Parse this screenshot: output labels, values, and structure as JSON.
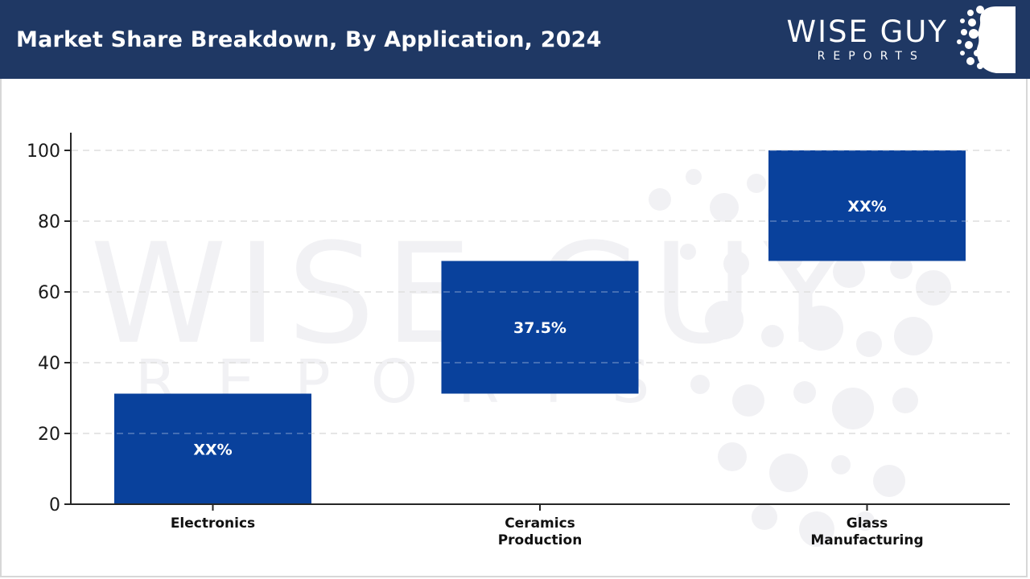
{
  "header": {
    "title": "Market Share Breakdown, By Application, 2024",
    "logo": {
      "line1": "WISE GUY",
      "line2": "REPORTS"
    }
  },
  "watermark": {
    "line1": "WISE GUY",
    "line2": "REPORTS"
  },
  "colors": {
    "header_bg": "#1f3864",
    "bar": "#09419c",
    "grid": "#d9d9d9",
    "grid_over_bar": "rgba(255,255,255,0.28)",
    "axis": "#262626",
    "tick_label": "#1a1a1a",
    "category_label": "#111111",
    "bar_label": "#ffffff",
    "watermark": "#f1f1f4",
    "frame_border": "#d7d7d7"
  },
  "chart_data": {
    "type": "bar",
    "subtype": "floating-waterfall",
    "title": "Market Share Breakdown, By Application, 2024",
    "categories": [
      "Electronics",
      "Ceramics Production",
      "Glass Manufacturing"
    ],
    "category_lines": [
      [
        "Electronics"
      ],
      [
        "Ceramics",
        "Production"
      ],
      [
        "Glass",
        "Manufacturing"
      ]
    ],
    "segments": [
      {
        "category": "Electronics",
        "start": 0,
        "end": 31.25,
        "label": "XX%"
      },
      {
        "category": "Ceramics Production",
        "start": 31.25,
        "end": 68.75,
        "label": "37.5%"
      },
      {
        "category": "Glass Manufacturing",
        "start": 68.75,
        "end": 100,
        "label": "XX%"
      }
    ],
    "ylim": [
      0,
      100
    ],
    "yticks": [
      0,
      20,
      40,
      60,
      80,
      100
    ],
    "xlabel": "",
    "ylabel": "",
    "grid": "horizontal-dashed",
    "legend": "none"
  }
}
